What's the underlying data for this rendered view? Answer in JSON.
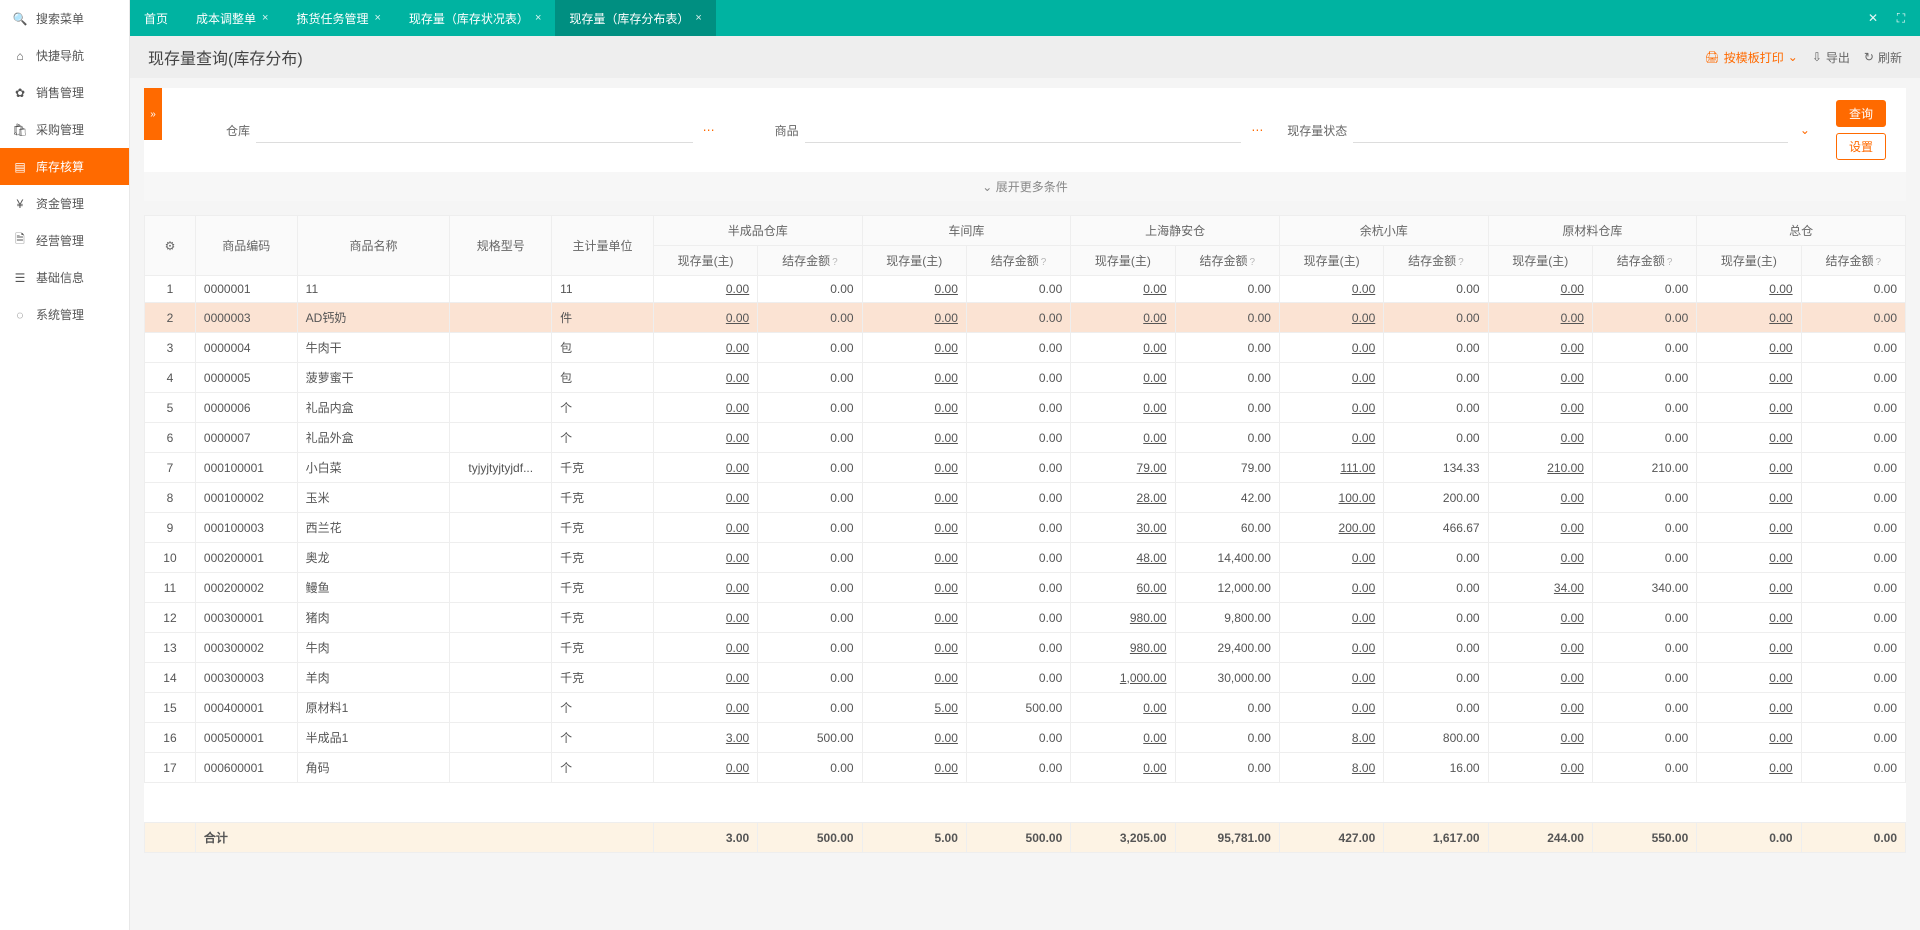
{
  "sidebar": {
    "items": [
      {
        "label": "搜索菜单",
        "icon": "search"
      },
      {
        "label": "快捷导航",
        "icon": "home"
      },
      {
        "label": "销售管理",
        "icon": "sale"
      },
      {
        "label": "采购管理",
        "icon": "bag"
      },
      {
        "label": "库存核算",
        "icon": "layers",
        "active": true
      },
      {
        "label": "资金管理",
        "icon": "money"
      },
      {
        "label": "经营管理",
        "icon": "doc"
      },
      {
        "label": "基础信息",
        "icon": "db"
      },
      {
        "label": "系统管理",
        "icon": "gear"
      }
    ]
  },
  "tabs": [
    {
      "label": "首页",
      "closable": false
    },
    {
      "label": "成本调整单",
      "closable": true
    },
    {
      "label": "拣货任务管理",
      "closable": true
    },
    {
      "label": "现存量（库存状况表）",
      "closable": true
    },
    {
      "label": "现存量（库存分布表）",
      "closable": true,
      "active": true
    }
  ],
  "page": {
    "title": "现存量查询(库存分布)",
    "actions": {
      "print": "按模板打印",
      "export": "导出",
      "refresh": "刷新"
    }
  },
  "filter": {
    "fields": [
      {
        "label": "仓库",
        "type": "picker"
      },
      {
        "label": "商品",
        "type": "picker"
      },
      {
        "label": "现存量状态",
        "type": "select"
      }
    ],
    "query": "查询",
    "settings": "设置",
    "expand": "展开更多条件"
  },
  "warehouses": [
    "半成品仓库",
    "车间库",
    "上海静安仓",
    "余杭小库",
    "原材料仓库",
    "总仓"
  ],
  "subcols": {
    "qty": "现存量(主)",
    "amt": "结存金额"
  },
  "fixedCols": {
    "gear": "⚙",
    "code": "商品编码",
    "name": "商品名称",
    "spec": "规格型号",
    "uom": "主计量单位"
  },
  "rows": [
    {
      "code": "0000001",
      "name": "11",
      "spec": "",
      "uom": "11",
      "hl": false,
      "v": [
        [
          "0.00",
          "0.00"
        ],
        [
          "0.00",
          "0.00"
        ],
        [
          "0.00",
          "0.00"
        ],
        [
          "0.00",
          "0.00"
        ],
        [
          "0.00",
          "0.00"
        ],
        [
          "0.00",
          "0.00"
        ]
      ]
    },
    {
      "code": "0000003",
      "name": "AD钙奶",
      "spec": "",
      "uom": "件",
      "hl": true,
      "v": [
        [
          "0.00",
          "0.00"
        ],
        [
          "0.00",
          "0.00"
        ],
        [
          "0.00",
          "0.00"
        ],
        [
          "0.00",
          "0.00"
        ],
        [
          "0.00",
          "0.00"
        ],
        [
          "0.00",
          "0.00"
        ]
      ]
    },
    {
      "code": "0000004",
      "name": "牛肉干",
      "spec": "",
      "uom": "包",
      "hl": false,
      "v": [
        [
          "0.00",
          "0.00"
        ],
        [
          "0.00",
          "0.00"
        ],
        [
          "0.00",
          "0.00"
        ],
        [
          "0.00",
          "0.00"
        ],
        [
          "0.00",
          "0.00"
        ],
        [
          "0.00",
          "0.00"
        ]
      ]
    },
    {
      "code": "0000005",
      "name": "菠萝蜜干",
      "spec": "",
      "uom": "包",
      "hl": false,
      "v": [
        [
          "0.00",
          "0.00"
        ],
        [
          "0.00",
          "0.00"
        ],
        [
          "0.00",
          "0.00"
        ],
        [
          "0.00",
          "0.00"
        ],
        [
          "0.00",
          "0.00"
        ],
        [
          "0.00",
          "0.00"
        ]
      ]
    },
    {
      "code": "0000006",
      "name": "礼品内盒",
      "spec": "",
      "uom": "个",
      "hl": false,
      "v": [
        [
          "0.00",
          "0.00"
        ],
        [
          "0.00",
          "0.00"
        ],
        [
          "0.00",
          "0.00"
        ],
        [
          "0.00",
          "0.00"
        ],
        [
          "0.00",
          "0.00"
        ],
        [
          "0.00",
          "0.00"
        ]
      ]
    },
    {
      "code": "0000007",
      "name": "礼品外盒",
      "spec": "",
      "uom": "个",
      "hl": false,
      "v": [
        [
          "0.00",
          "0.00"
        ],
        [
          "0.00",
          "0.00"
        ],
        [
          "0.00",
          "0.00"
        ],
        [
          "0.00",
          "0.00"
        ],
        [
          "0.00",
          "0.00"
        ],
        [
          "0.00",
          "0.00"
        ]
      ]
    },
    {
      "code": "000100001",
      "name": "小白菜",
      "spec": "tyjyjtyjtyjdf...",
      "uom": "千克",
      "hl": false,
      "v": [
        [
          "0.00",
          "0.00"
        ],
        [
          "0.00",
          "0.00"
        ],
        [
          "79.00",
          "79.00"
        ],
        [
          "111.00",
          "134.33"
        ],
        [
          "210.00",
          "210.00"
        ],
        [
          "0.00",
          "0.00"
        ]
      ]
    },
    {
      "code": "000100002",
      "name": "玉米",
      "spec": "",
      "uom": "千克",
      "hl": false,
      "v": [
        [
          "0.00",
          "0.00"
        ],
        [
          "0.00",
          "0.00"
        ],
        [
          "28.00",
          "42.00"
        ],
        [
          "100.00",
          "200.00"
        ],
        [
          "0.00",
          "0.00"
        ],
        [
          "0.00",
          "0.00"
        ]
      ]
    },
    {
      "code": "000100003",
      "name": "西兰花",
      "spec": "",
      "uom": "千克",
      "hl": false,
      "v": [
        [
          "0.00",
          "0.00"
        ],
        [
          "0.00",
          "0.00"
        ],
        [
          "30.00",
          "60.00"
        ],
        [
          "200.00",
          "466.67"
        ],
        [
          "0.00",
          "0.00"
        ],
        [
          "0.00",
          "0.00"
        ]
      ]
    },
    {
      "code": "000200001",
      "name": "奥龙",
      "spec": "",
      "uom": "千克",
      "hl": false,
      "v": [
        [
          "0.00",
          "0.00"
        ],
        [
          "0.00",
          "0.00"
        ],
        [
          "48.00",
          "14,400.00"
        ],
        [
          "0.00",
          "0.00"
        ],
        [
          "0.00",
          "0.00"
        ],
        [
          "0.00",
          "0.00"
        ]
      ]
    },
    {
      "code": "000200002",
      "name": "鳗鱼",
      "spec": "",
      "uom": "千克",
      "hl": false,
      "v": [
        [
          "0.00",
          "0.00"
        ],
        [
          "0.00",
          "0.00"
        ],
        [
          "60.00",
          "12,000.00"
        ],
        [
          "0.00",
          "0.00"
        ],
        [
          "34.00",
          "340.00"
        ],
        [
          "0.00",
          "0.00"
        ]
      ]
    },
    {
      "code": "000300001",
      "name": "猪肉",
      "spec": "",
      "uom": "千克",
      "hl": false,
      "v": [
        [
          "0.00",
          "0.00"
        ],
        [
          "0.00",
          "0.00"
        ],
        [
          "980.00",
          "9,800.00"
        ],
        [
          "0.00",
          "0.00"
        ],
        [
          "0.00",
          "0.00"
        ],
        [
          "0.00",
          "0.00"
        ]
      ]
    },
    {
      "code": "000300002",
      "name": "牛肉",
      "spec": "",
      "uom": "千克",
      "hl": false,
      "v": [
        [
          "0.00",
          "0.00"
        ],
        [
          "0.00",
          "0.00"
        ],
        [
          "980.00",
          "29,400.00"
        ],
        [
          "0.00",
          "0.00"
        ],
        [
          "0.00",
          "0.00"
        ],
        [
          "0.00",
          "0.00"
        ]
      ]
    },
    {
      "code": "000300003",
      "name": "羊肉",
      "spec": "",
      "uom": "千克",
      "hl": false,
      "v": [
        [
          "0.00",
          "0.00"
        ],
        [
          "0.00",
          "0.00"
        ],
        [
          "1,000.00",
          "30,000.00"
        ],
        [
          "0.00",
          "0.00"
        ],
        [
          "0.00",
          "0.00"
        ],
        [
          "0.00",
          "0.00"
        ]
      ]
    },
    {
      "code": "000400001",
      "name": "原材料1",
      "spec": "",
      "uom": "个",
      "hl": false,
      "v": [
        [
          "0.00",
          "0.00"
        ],
        [
          "5.00",
          "500.00"
        ],
        [
          "0.00",
          "0.00"
        ],
        [
          "0.00",
          "0.00"
        ],
        [
          "0.00",
          "0.00"
        ],
        [
          "0.00",
          "0.00"
        ]
      ]
    },
    {
      "code": "000500001",
      "name": "半成品1",
      "spec": "",
      "uom": "个",
      "hl": false,
      "v": [
        [
          "3.00",
          "500.00"
        ],
        [
          "0.00",
          "0.00"
        ],
        [
          "0.00",
          "0.00"
        ],
        [
          "8.00",
          "800.00"
        ],
        [
          "0.00",
          "0.00"
        ],
        [
          "0.00",
          "0.00"
        ]
      ]
    },
    {
      "code": "000600001",
      "name": "角码",
      "spec": "",
      "uom": "个",
      "hl": false,
      "v": [
        [
          "0.00",
          "0.00"
        ],
        [
          "0.00",
          "0.00"
        ],
        [
          "0.00",
          "0.00"
        ],
        [
          "8.00",
          "16.00"
        ],
        [
          "0.00",
          "0.00"
        ],
        [
          "0.00",
          "0.00"
        ]
      ]
    }
  ],
  "footer": {
    "label": "合计",
    "v": [
      [
        "3.00",
        "500.00"
      ],
      [
        "5.00",
        "500.00"
      ],
      [
        "3,205.00",
        "95,781.00"
      ],
      [
        "427.00",
        "1,617.00"
      ],
      [
        "244.00",
        "550.00"
      ],
      [
        "0.00",
        "0.00"
      ]
    ]
  }
}
